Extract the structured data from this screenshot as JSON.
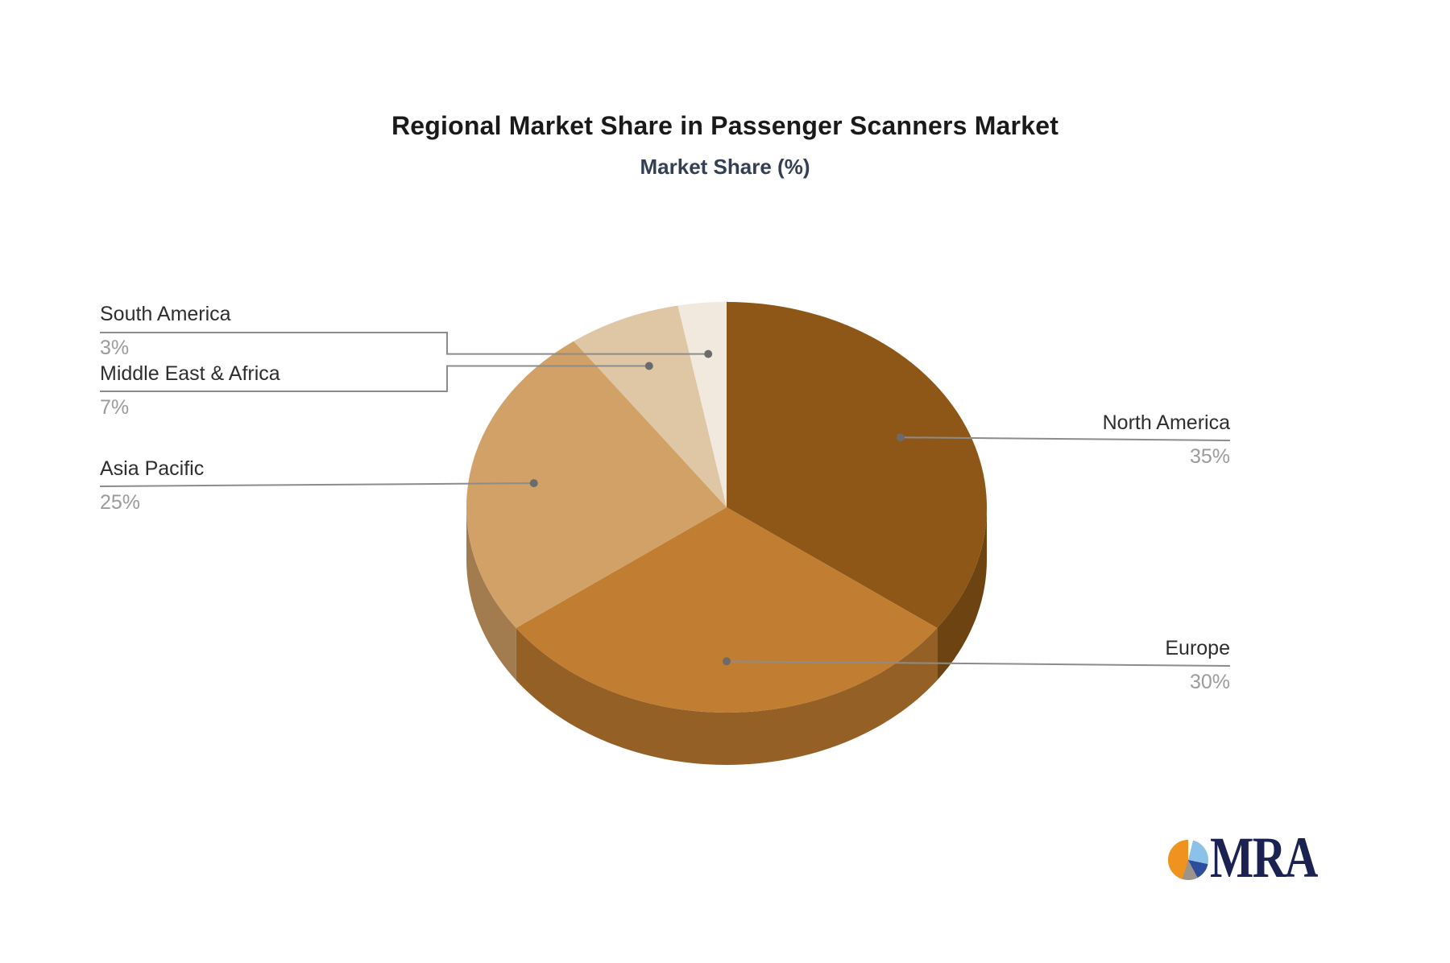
{
  "chart_data": {
    "type": "pie",
    "title": "Regional Market Share in Passenger Scanners Market",
    "subtitle": "Market Share (%)",
    "value_unit": "%",
    "style": "3d",
    "rotation": "clockwise-from-top",
    "legend": "none",
    "slices": [
      {
        "name": "North America",
        "value": 35,
        "label": "35%",
        "color": "#8E5717"
      },
      {
        "name": "Europe",
        "value": 30,
        "label": "30%",
        "color": "#C17D31"
      },
      {
        "name": "Asia Pacific",
        "value": 25,
        "label": "25%",
        "color": "#D2A167"
      },
      {
        "name": "Middle East & Africa",
        "value": 7,
        "label": "7%",
        "color": "#DFC7A6"
      },
      {
        "name": "South America",
        "value": 3,
        "label": "3%",
        "color": "#F1E9DE"
      }
    ]
  },
  "colors": {
    "background": "#FFFFFF",
    "title_color": "#1A1A1A",
    "subtitle_color": "#343F54",
    "label_name_color": "#2E2E2E",
    "label_percent_color": "#9B9B9B",
    "connector_color": "#8C8C8C",
    "connector_dot_color": "#6B6B6B",
    "logo_text_color": "#1B2150"
  },
  "logo": {
    "text": "MRA",
    "icon_colors": {
      "orange": "#F0921E",
      "light_blue": "#8CC1E8",
      "dark_blue": "#2C4D9B",
      "gray": "#9B9489"
    }
  }
}
